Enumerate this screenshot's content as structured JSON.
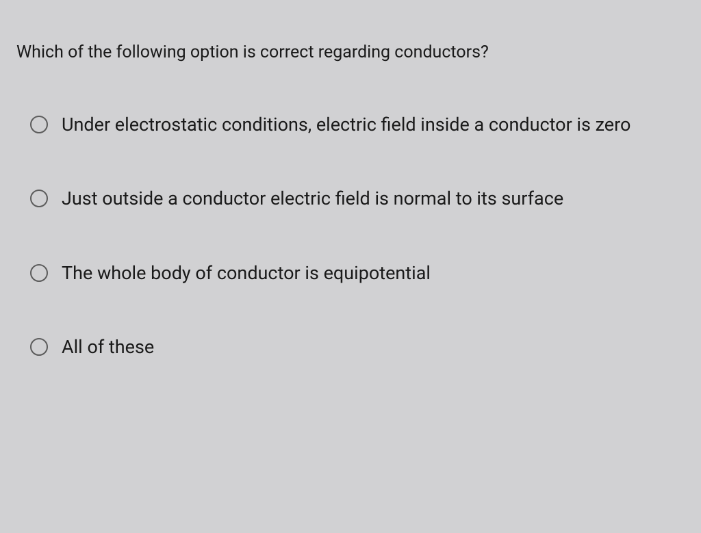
{
  "quiz": {
    "question_text": "Which of the following option is correct regarding conductors?",
    "question_fontsize": 25,
    "label_fontsize": 27,
    "text_color": "#1a1a1a",
    "background_color": "#d1d1d3",
    "radio_border_color": "#5c5c5c",
    "options": [
      {
        "label": "Under electrostatic conditions, electric field inside a conductor is zero",
        "selected": false
      },
      {
        "label": "Just outside a conductor electric field is normal to its surface",
        "selected": false
      },
      {
        "label": "The whole body of conductor is equipotential",
        "selected": false
      },
      {
        "label": "All of these",
        "selected": false
      }
    ]
  }
}
